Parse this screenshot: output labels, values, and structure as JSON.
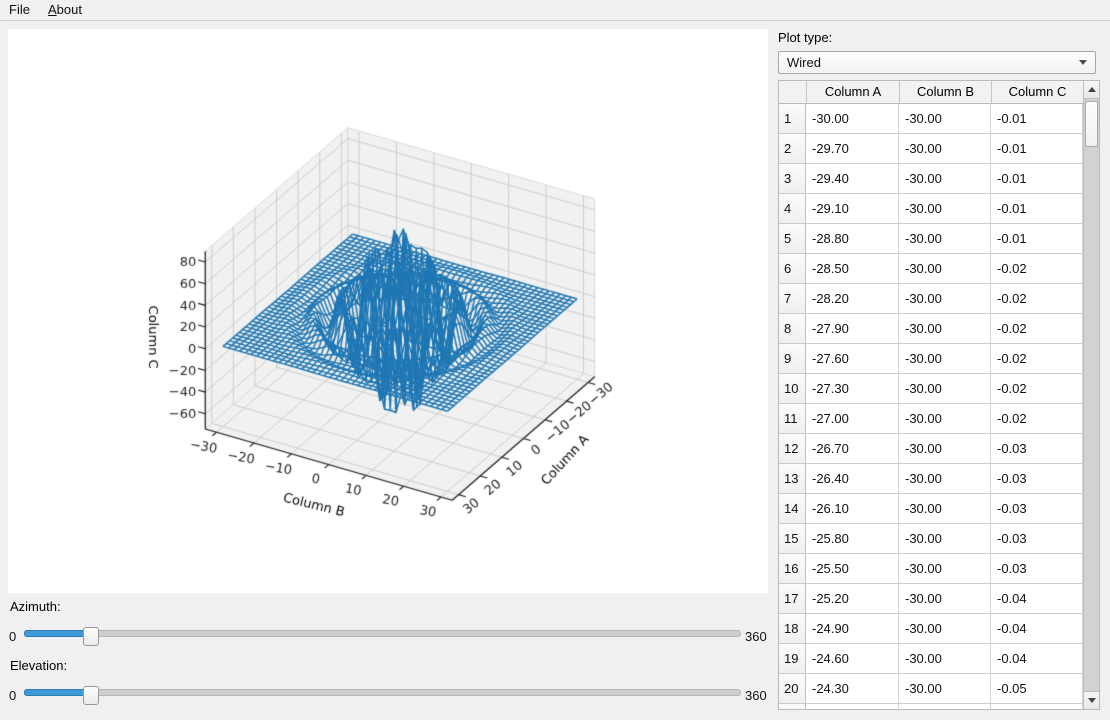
{
  "menu": {
    "file_label": "File",
    "about_accel": "A",
    "about_rest": "bout"
  },
  "plot_type": {
    "label": "Plot type:",
    "value": "Wired"
  },
  "table": {
    "columns": [
      "Column A",
      "Column B",
      "Column C"
    ],
    "rows": [
      [
        "1",
        "-30.00",
        "-30.00",
        "-0.01"
      ],
      [
        "2",
        "-29.70",
        "-30.00",
        "-0.01"
      ],
      [
        "3",
        "-29.40",
        "-30.00",
        "-0.01"
      ],
      [
        "4",
        "-29.10",
        "-30.00",
        "-0.01"
      ],
      [
        "5",
        "-28.80",
        "-30.00",
        "-0.01"
      ],
      [
        "6",
        "-28.50",
        "-30.00",
        "-0.02"
      ],
      [
        "7",
        "-28.20",
        "-30.00",
        "-0.02"
      ],
      [
        "8",
        "-27.90",
        "-30.00",
        "-0.02"
      ],
      [
        "9",
        "-27.60",
        "-30.00",
        "-0.02"
      ],
      [
        "10",
        "-27.30",
        "-30.00",
        "-0.02"
      ],
      [
        "11",
        "-27.00",
        "-30.00",
        "-0.02"
      ],
      [
        "12",
        "-26.70",
        "-30.00",
        "-0.03"
      ],
      [
        "13",
        "-26.40",
        "-30.00",
        "-0.03"
      ],
      [
        "14",
        "-26.10",
        "-30.00",
        "-0.03"
      ],
      [
        "15",
        "-25.80",
        "-30.00",
        "-0.03"
      ],
      [
        "16",
        "-25.50",
        "-30.00",
        "-0.03"
      ],
      [
        "17",
        "-25.20",
        "-30.00",
        "-0.04"
      ],
      [
        "18",
        "-24.90",
        "-30.00",
        "-0.04"
      ],
      [
        "19",
        "-24.60",
        "-30.00",
        "-0.04"
      ],
      [
        "20",
        "-24.30",
        "-30.00",
        "-0.05"
      ]
    ]
  },
  "sliders": {
    "azimuth": {
      "label": "Azimuth:",
      "min_label": "0",
      "max_label": "360",
      "handle_percent": 9.2
    },
    "elevation": {
      "label": "Elevation:",
      "min_label": "0",
      "max_label": "360",
      "handle_percent": 9.2
    }
  },
  "colors": {
    "wireframe": "#1f77b4",
    "slider_fill": "#3c9ad9"
  },
  "chart_data": {
    "type": "wireframe3d",
    "xlabel": "Column B",
    "ylabel": "Column A",
    "zlabel": "Column C",
    "x_ticks": [
      -30,
      -20,
      -10,
      0,
      10,
      20,
      30
    ],
    "y_ticks": [
      -30,
      -20,
      -10,
      0,
      10,
      20,
      30
    ],
    "z_ticks": [
      -60,
      -40,
      -20,
      0,
      20,
      40,
      60,
      80
    ],
    "xlim": [
      -33,
      33
    ],
    "ylim": [
      -33,
      33
    ],
    "zlim": [
      -74,
      90
    ],
    "view": {
      "elev": 30,
      "azim": 30
    },
    "surface": {
      "formula": "z = 85 * sin(r) * exp(-(r/12.5)^2), r = sqrt(a^2 + b^2)",
      "amplitude": 85,
      "sigma": 12.5,
      "domain": [
        -30,
        30
      ],
      "grid_steps": 40
    },
    "wire_color": "#1f77b4",
    "pane_color": "#f1f1f1",
    "grid_color": "#cdcdcd",
    "spine_color": "#1a1a1a",
    "grid_on": true,
    "legend": null
  }
}
